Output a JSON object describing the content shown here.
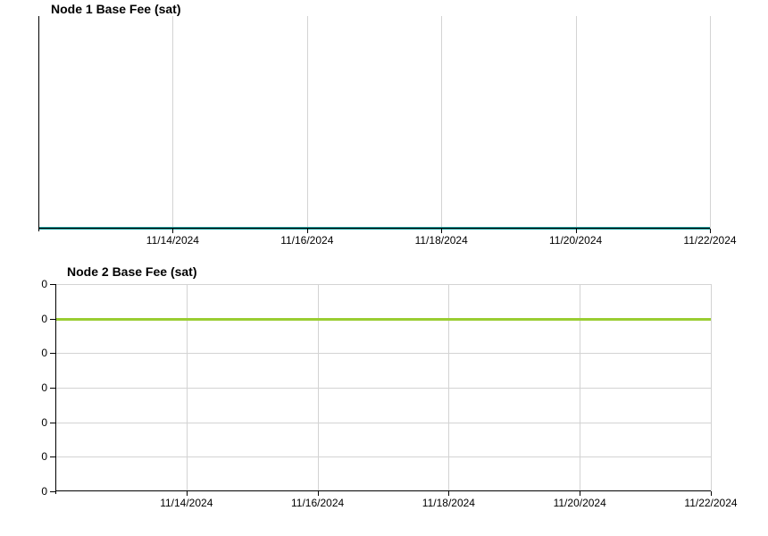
{
  "page": {
    "background": "#ffffff"
  },
  "colors": {
    "axis": "#000000",
    "gridline": "#d3d3d3",
    "node1_line": "#1f9d9d",
    "node2_line": "#9acd32",
    "label_text": "#000000"
  },
  "chart_data": [
    {
      "type": "line",
      "title": "Node 1 Base Fee (sat)",
      "xlabel": "",
      "ylabel": "",
      "x_ticks": [
        "11/14/2024",
        "11/16/2024",
        "11/18/2024",
        "11/20/2024",
        "11/22/2024"
      ],
      "y_ticks": [],
      "grid": "vertical-only",
      "legend": "none",
      "line_position_fraction": 1.0,
      "series": [
        {
          "name": "Node 1 Base Fee",
          "color": "#1f9d9d",
          "x": [
            "11/12/2024",
            "11/14/2024",
            "11/16/2024",
            "11/18/2024",
            "11/20/2024",
            "11/22/2024"
          ],
          "values": [
            0,
            0,
            0,
            0,
            0,
            0
          ]
        }
      ]
    },
    {
      "type": "line",
      "title": "Node 2 Base Fee (sat)",
      "xlabel": "",
      "ylabel": "",
      "x_ticks": [
        "11/14/2024",
        "11/16/2024",
        "11/18/2024",
        "11/20/2024",
        "11/22/2024"
      ],
      "y_ticks": [
        "0",
        "0",
        "0",
        "0",
        "0",
        "0",
        "0"
      ],
      "grid": "full",
      "legend": "none",
      "line_position_fraction": 0.16667,
      "series": [
        {
          "name": "Node 2 Base Fee",
          "color": "#9acd32",
          "x": [
            "11/12/2024",
            "11/14/2024",
            "11/16/2024",
            "11/18/2024",
            "11/20/2024",
            "11/22/2024"
          ],
          "values": [
            0,
            0,
            0,
            0,
            0,
            0
          ]
        }
      ]
    }
  ]
}
